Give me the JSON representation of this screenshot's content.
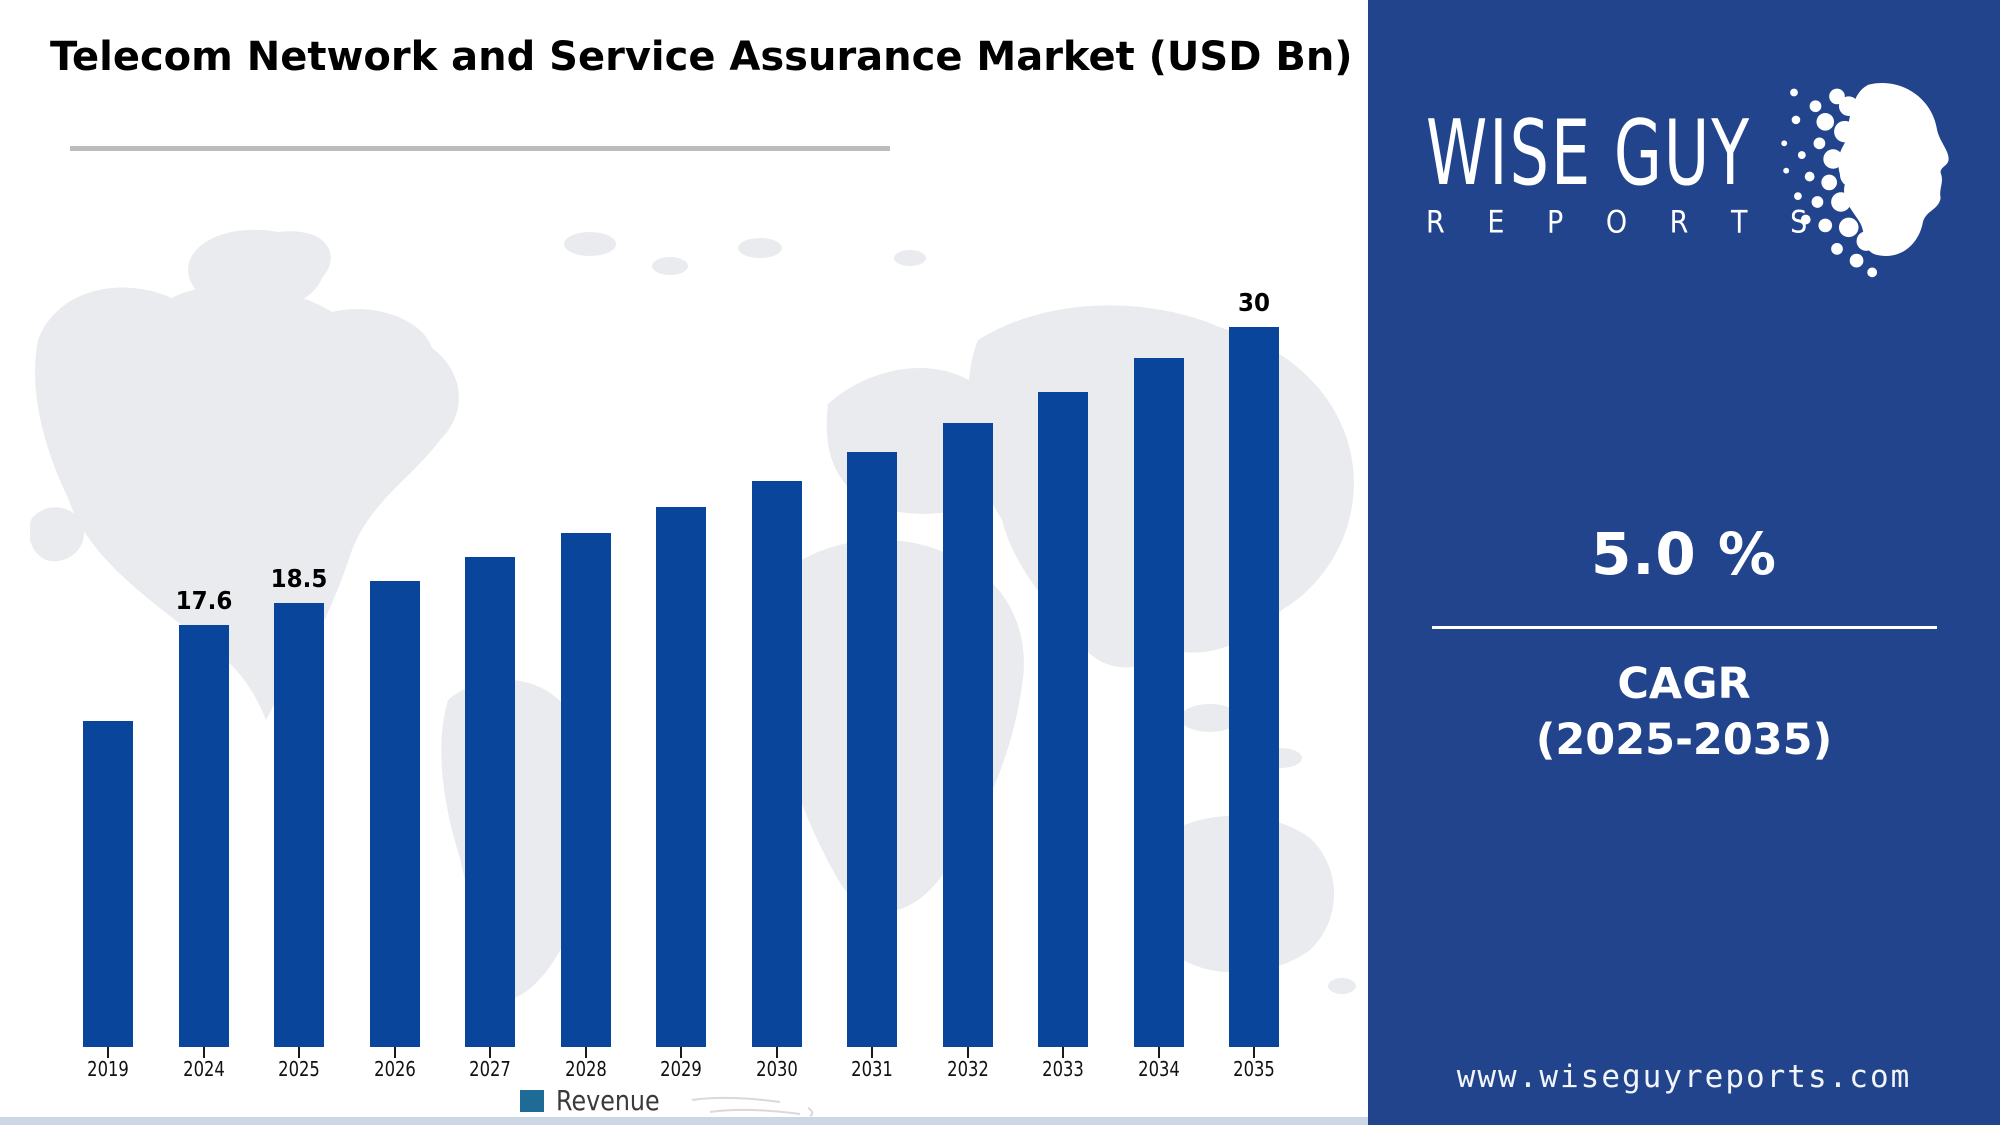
{
  "title": "Telecom Network and Service Assurance Market (USD Bn)",
  "chart_data": {
    "type": "bar",
    "title": "Telecom Network and Service Assurance Market (USD Bn)",
    "xlabel": "",
    "ylabel": "",
    "ylim": [
      0,
      31
    ],
    "grid": false,
    "legend_position": "bottom",
    "categories": [
      "2019",
      "2024",
      "2025",
      "2026",
      "2027",
      "2028",
      "2029",
      "2030",
      "2031",
      "2032",
      "2033",
      "2034",
      "2035"
    ],
    "series": [
      {
        "name": "Revenue",
        "values": [
          13.6,
          17.6,
          18.5,
          19.4,
          20.4,
          21.4,
          22.5,
          23.6,
          24.8,
          26.0,
          27.3,
          28.7,
          30
        ]
      }
    ],
    "value_labels": [
      "",
      "17.6",
      "18.5",
      "",
      "",
      "",
      "",
      "",
      "",
      "",
      "",
      "",
      "30"
    ],
    "bar_color": "#0a459c",
    "legend_swatch_color": "#1e6b96",
    "background_map": "world-map-light-gray"
  },
  "legend": {
    "label": "Revenue"
  },
  "sidebar": {
    "background_color": "#21448c",
    "logo": {
      "line1": "WISE GUY",
      "line2": "R E P O R T S"
    },
    "cagr_value": "5.0 %",
    "cagr_label_line1": "CAGR",
    "cagr_label_line2": "(2025-2035)",
    "website": "www.wiseguyreports.com"
  },
  "colors": {
    "bar": "#0a459c",
    "sidebar": "#21448c",
    "map": "#e9ebee",
    "underline": "#bcbcbe",
    "bottom_strip": "#ccd7e6"
  }
}
